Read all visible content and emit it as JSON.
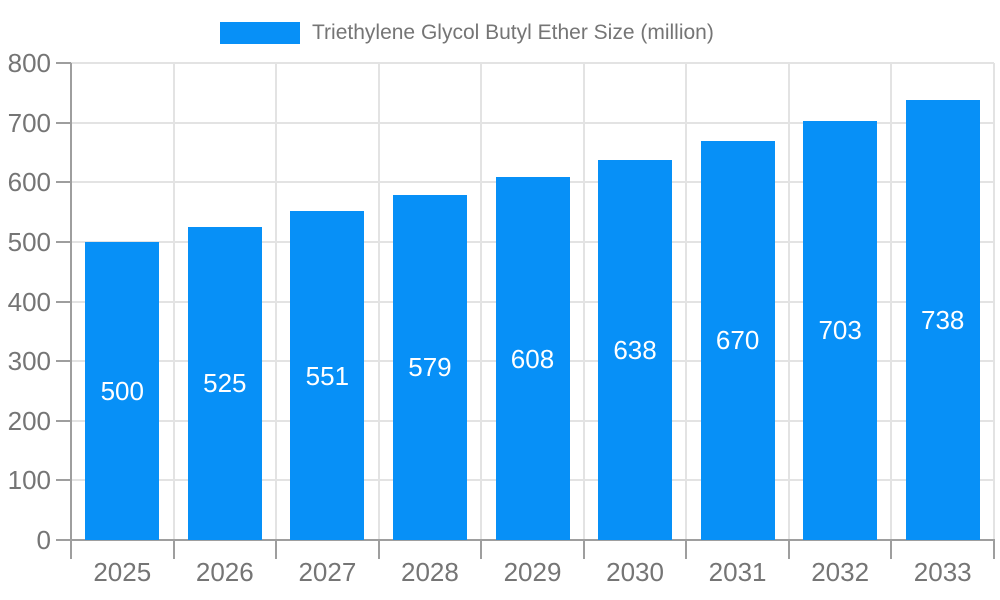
{
  "legend": {
    "label": "Triethylene Glycol Butyl Ether Size (million)",
    "swatch_color": "#0790F7"
  },
  "chart_data": {
    "type": "bar",
    "title": "",
    "xlabel": "",
    "ylabel": "",
    "categories": [
      "2025",
      "2026",
      "2027",
      "2028",
      "2029",
      "2030",
      "2031",
      "2032",
      "2033"
    ],
    "series": [
      {
        "name": "Triethylene Glycol Butyl Ether Size (million)",
        "values": [
          500,
          525,
          551,
          579,
          608,
          638,
          670,
          703,
          738
        ]
      }
    ],
    "ylim": [
      0,
      800
    ],
    "ytick_step": 100,
    "grid": true,
    "legend_position": "top",
    "colors": {
      "bar": "#0790F7",
      "value_label": "#FFFFFF",
      "axis_text": "#757575",
      "grid_line": "#E3E3E3",
      "axis_line": "#9E9E9E",
      "background": "#FFFFFF"
    }
  }
}
